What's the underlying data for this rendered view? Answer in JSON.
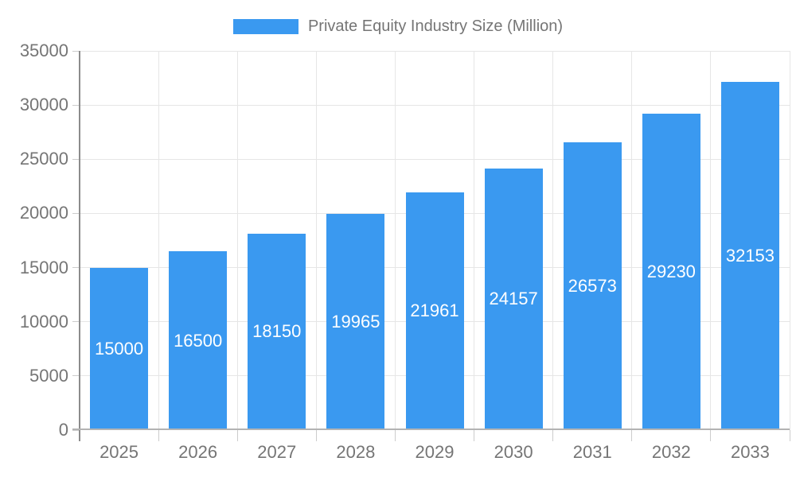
{
  "chart_data": {
    "type": "bar",
    "title": "Private Equity Industry Size (Million)",
    "legend_entries": [
      "Private Equity Industry Size (Million)"
    ],
    "legend_position": "top",
    "categories": [
      "2025",
      "2026",
      "2027",
      "2028",
      "2029",
      "2030",
      "2031",
      "2032",
      "2033"
    ],
    "values": [
      15000,
      16500,
      18150,
      19965,
      21961,
      24157,
      26573,
      29230,
      32153
    ],
    "bar_labels": [
      "15000",
      "16500",
      "18150",
      "19965",
      "21961",
      "24157",
      "26573",
      "29230",
      "32153"
    ],
    "bar_label_placement": "inside-center",
    "xlabel": "",
    "ylabel": "",
    "ylim": [
      0,
      35000
    ],
    "yticks": [
      0,
      5000,
      10000,
      15000,
      20000,
      25000,
      30000,
      35000
    ],
    "grid": true,
    "colors": {
      "bar": "#3A99F0",
      "bar_label": "#FFFFFF",
      "axis_label": "#757575",
      "grid_line": "#E6E6E6",
      "axis_line": "#8C8C8C",
      "baseline": "#B3B3B3",
      "tick": "#CCCCCC",
      "background": "#FFFFFF"
    }
  }
}
